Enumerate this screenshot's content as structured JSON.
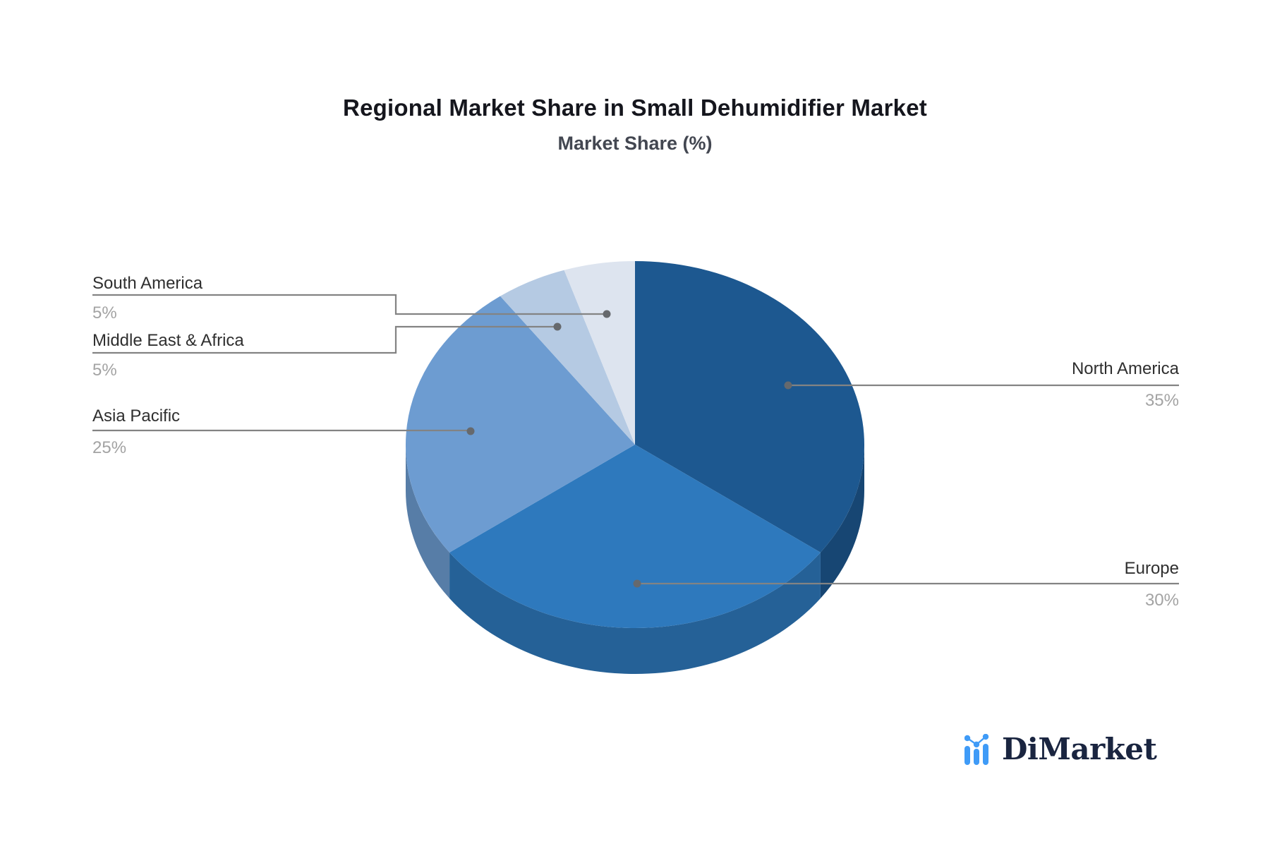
{
  "chart_data": {
    "type": "pie",
    "title": "Regional Market Share in Small Dehumidifier Market",
    "subtitle": "Market Share (%)",
    "unit": "%",
    "effect": "3d",
    "start_angle_deg": 0,
    "direction": "clockwise",
    "legend_position": "callout-labels",
    "slices": [
      {
        "label": "North America",
        "value": 35,
        "display": "35%",
        "color": "#1d5890"
      },
      {
        "label": "Europe",
        "value": 30,
        "display": "30%",
        "color": "#2e79bd"
      },
      {
        "label": "Asia Pacific",
        "value": 25,
        "display": "25%",
        "color": "#6d9cd1"
      },
      {
        "label": "Middle East & Africa",
        "value": 5,
        "display": "5%",
        "color": "#b5cae3"
      },
      {
        "label": "South America",
        "value": 5,
        "display": "5%",
        "color": "#dde4ef"
      }
    ],
    "colors": {
      "label_text": "#2f2f2f",
      "percent_text": "#a3a3a3",
      "leader_line": "#838383",
      "leader_dot": "#66696d",
      "title_text": "#15161d",
      "subtitle_text": "#434751"
    }
  },
  "watermark": {
    "brand": "DiMarket",
    "icon": "bar-line-chart-icon",
    "accent_blue": "#3f9bf7",
    "text_navy": "#1a2540"
  }
}
